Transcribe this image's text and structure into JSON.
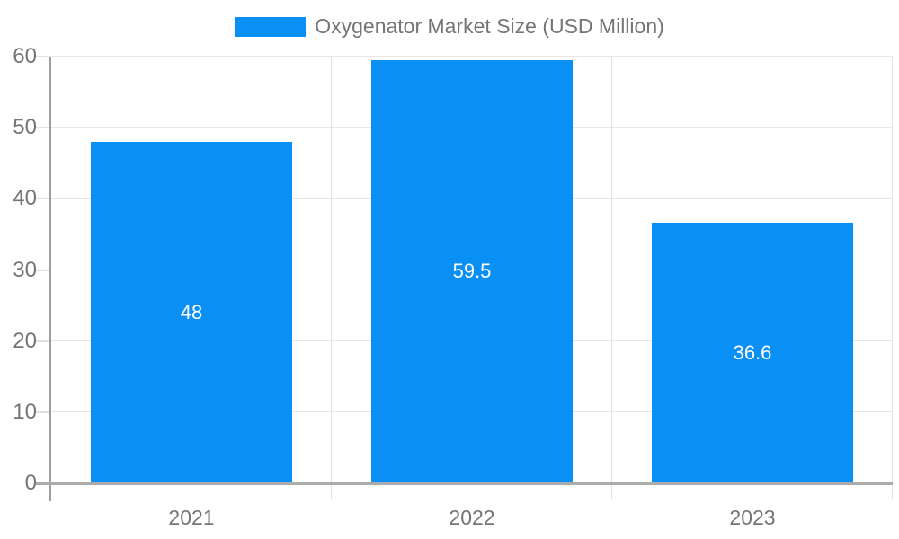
{
  "chart_data": {
    "type": "bar",
    "title": "Oxygenator Market Size (USD Million)",
    "categories": [
      "2021",
      "2022",
      "2023"
    ],
    "values": [
      48,
      59.5,
      36.6
    ],
    "bar_labels": [
      "48",
      "59.5",
      "36.6"
    ],
    "xlabel": "",
    "ylabel": "",
    "ylim": [
      0,
      60
    ],
    "yticks": [
      0,
      10,
      20,
      30,
      40,
      50,
      60
    ],
    "grid": true,
    "legend_position": "top-center",
    "legend_label": "Oxygenator Market Size (USD Million)"
  },
  "colors": {
    "bar": "#0a90f4",
    "bar_label_text": "#ffffff",
    "axis_label_text": "#757575",
    "legend_text": "#757575",
    "gridline": "#e6e6e6",
    "separator": "#e3e3e3",
    "x_axis_line": "#ababab",
    "y_axis_line": "#9e9e9e",
    "tick": "#e0e0e0",
    "background": "#ffffff"
  }
}
